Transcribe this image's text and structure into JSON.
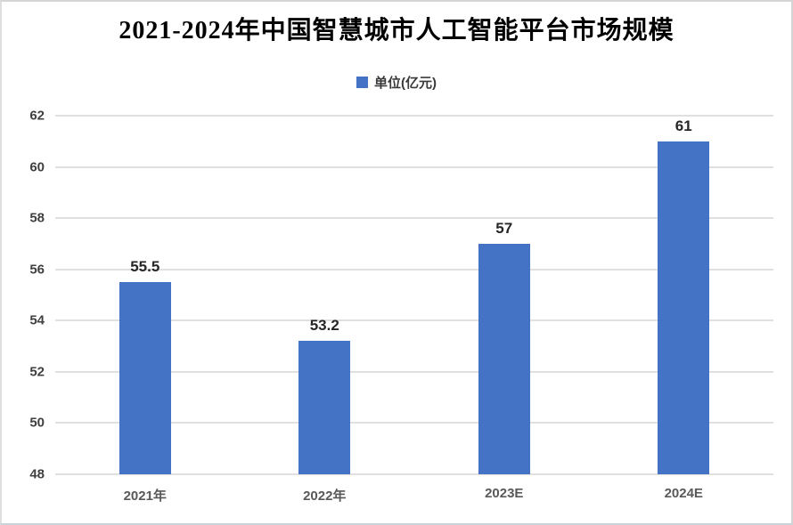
{
  "page": {
    "title": "2021-2024年中国智慧城市人工智能平台市场规模",
    "legend_label": "单位(亿元)"
  },
  "colors": {
    "bar": "#4472C4",
    "grid": "#E0E0E0",
    "axis_text": "#595959",
    "tick_text": "#404040",
    "value_text": "#262626",
    "title_text": "#000000"
  },
  "chart_data": {
    "type": "bar",
    "title": "2021-2024年中国智慧城市人工智能平台市场规模",
    "legend": [
      "单位(亿元)"
    ],
    "legend_position": "top",
    "categories": [
      "2021年",
      "2022年",
      "2023E",
      "2024E"
    ],
    "values": [
      55.5,
      53.2,
      57,
      61
    ],
    "value_labels": [
      "55.5",
      "53.2",
      "57",
      "61"
    ],
    "ylim": [
      48,
      62
    ],
    "yticks": [
      48,
      50,
      52,
      54,
      56,
      58,
      60,
      62
    ],
    "xlabel": "",
    "ylabel": "",
    "grid": true
  }
}
